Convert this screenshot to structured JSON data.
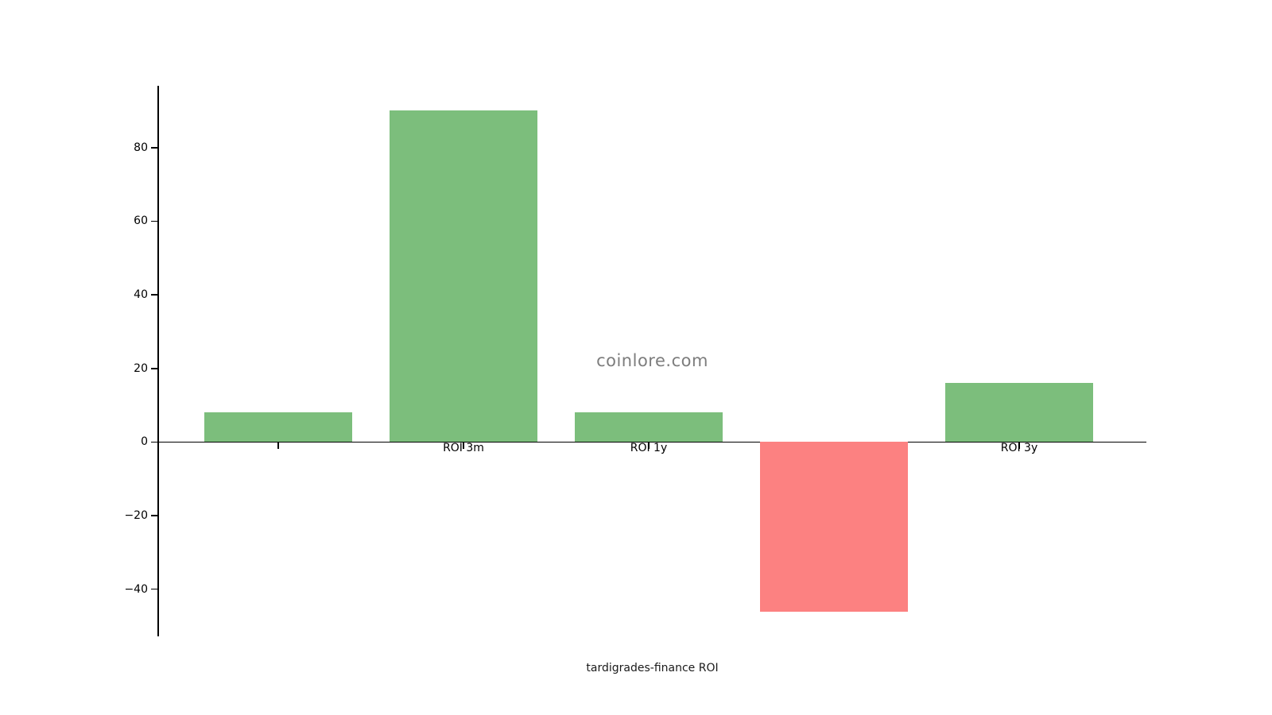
{
  "watermark": {
    "text": "coinlore.com",
    "color": "#7d7d7d"
  },
  "chart_data": {
    "type": "bar",
    "title": "tardigrades-finance ROI",
    "categories": [
      "",
      "ROI 3m",
      "ROI 1y",
      "",
      "ROI 3y"
    ],
    "values": [
      8,
      90,
      8,
      -46,
      16
    ],
    "series": [
      {
        "name": "tardigrades-finance ROI",
        "values": [
          8,
          90,
          8,
          -46,
          16
        ]
      }
    ],
    "positive_color": "#7cbe7c",
    "negative_color": "#fc8181",
    "axis_color": "#000000",
    "title_color": "#1a1a1a",
    "yticks": [
      80,
      60,
      40,
      20,
      0,
      -20,
      -40
    ],
    "ytick_labels": [
      "80",
      "60",
      "40",
      "20",
      "0",
      "−20",
      "−40"
    ],
    "ylim": [
      -52.8,
      96.8
    ],
    "xlabel": "",
    "ylabel": "",
    "grid": false,
    "legend_position": "none"
  }
}
